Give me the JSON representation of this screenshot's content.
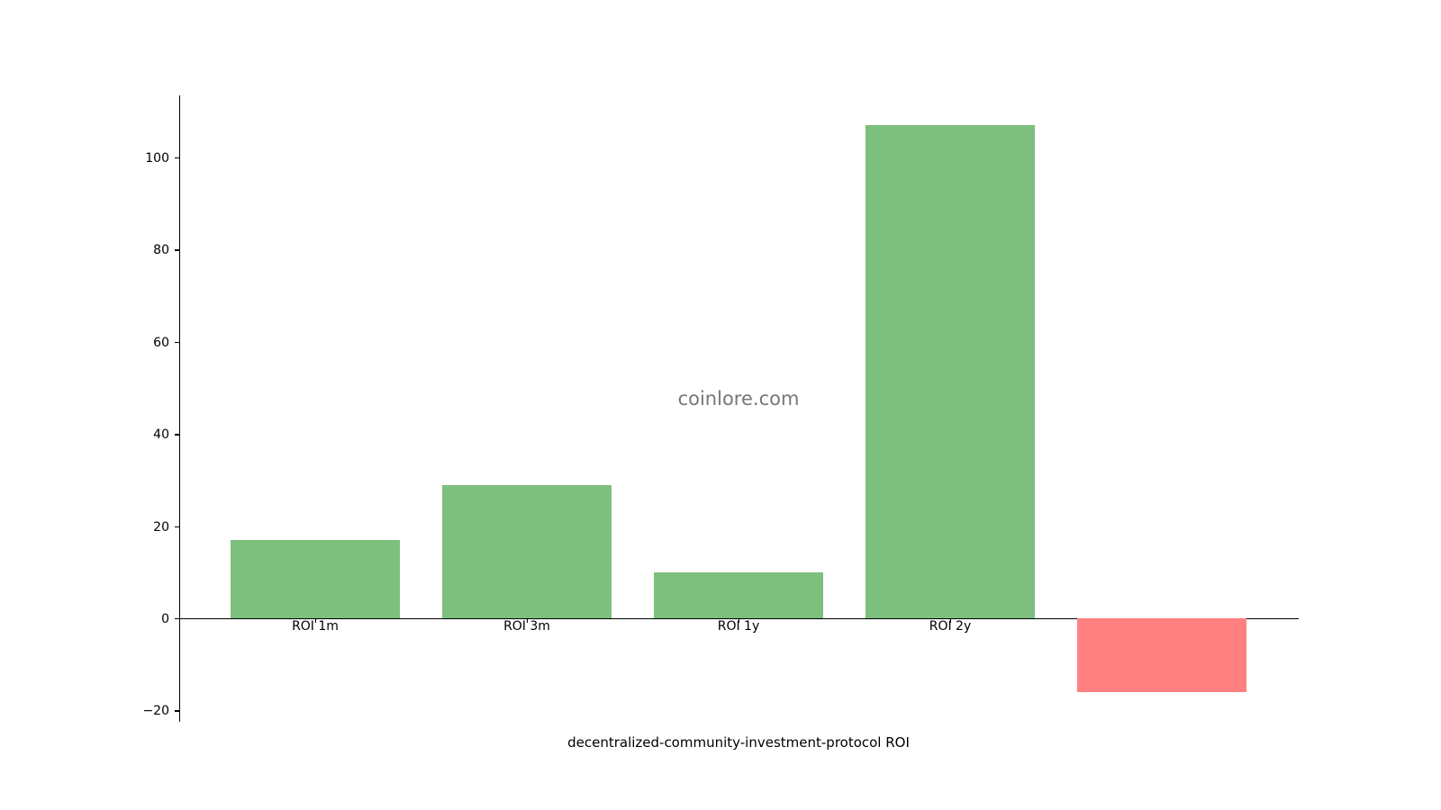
{
  "chart_data": {
    "type": "bar",
    "categories": [
      "ROI 1m",
      "ROI 3m",
      "ROI 1y",
      "ROI 2y",
      ""
    ],
    "values": [
      17,
      29,
      10,
      107,
      -16
    ],
    "title": "decentralized-community-investment-protocol ROI",
    "watermark": "coinlore.com",
    "xlabel": "",
    "ylabel": "",
    "yticks": [
      -20,
      0,
      20,
      40,
      60,
      80,
      100
    ],
    "ylim": [
      -22.5,
      113.5
    ],
    "grid": false,
    "legend": false,
    "colors": {
      "positive_bar": "#7dbf7d",
      "negative_bar": "#ff8080",
      "axis": "#000000",
      "watermark_text": "#777777",
      "title_text": "#000000"
    }
  }
}
